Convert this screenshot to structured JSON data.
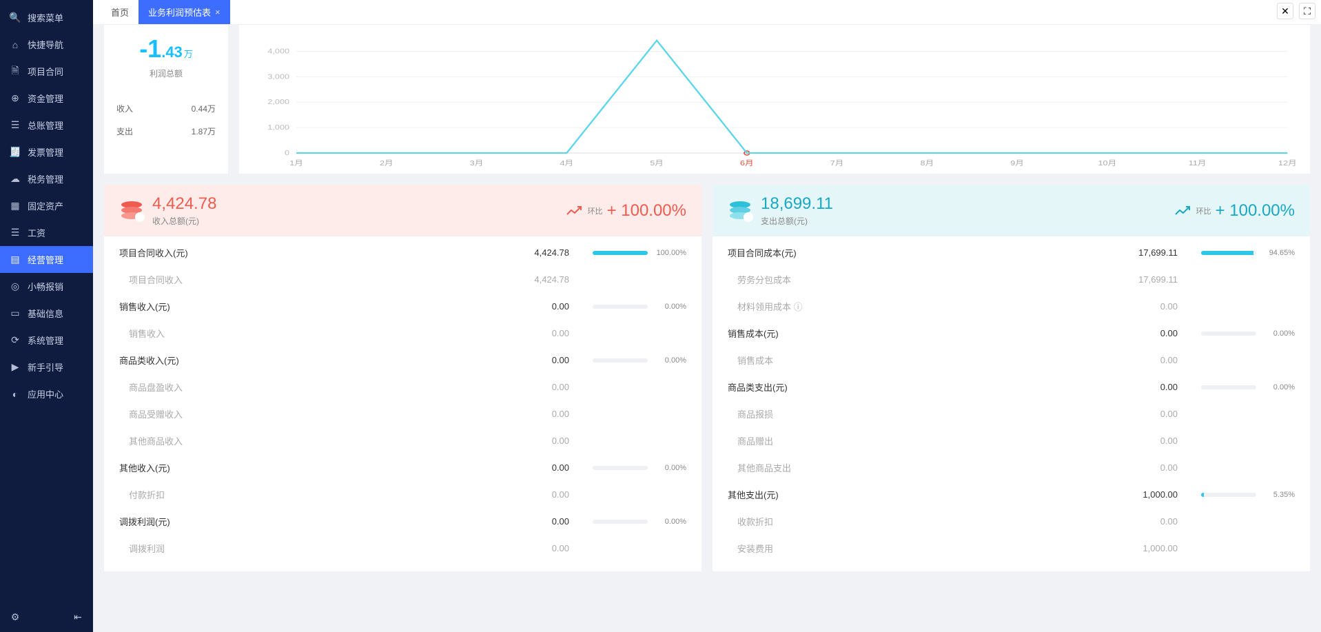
{
  "sidebar": {
    "items": [
      {
        "icon": "🔍",
        "label": "搜索菜单",
        "name": "sidebar-search"
      },
      {
        "icon": "⌂",
        "label": "快捷导航",
        "name": "sidebar-quicknav"
      },
      {
        "icon": "🗎",
        "label": "项目合同",
        "name": "sidebar-contract"
      },
      {
        "icon": "⊕",
        "label": "资金管理",
        "name": "sidebar-funds"
      },
      {
        "icon": "☰",
        "label": "总账管理",
        "name": "sidebar-ledger"
      },
      {
        "icon": "🧾",
        "label": "发票管理",
        "name": "sidebar-invoice"
      },
      {
        "icon": "☁",
        "label": "税务管理",
        "name": "sidebar-tax"
      },
      {
        "icon": "▦",
        "label": "固定资产",
        "name": "sidebar-assets"
      },
      {
        "icon": "☰",
        "label": "工资",
        "name": "sidebar-salary"
      },
      {
        "icon": "▤",
        "label": "经营管理",
        "name": "sidebar-operations",
        "active": true
      },
      {
        "icon": "◎",
        "label": "小畅报销",
        "name": "sidebar-reimburse"
      },
      {
        "icon": "▭",
        "label": "基础信息",
        "name": "sidebar-baseinfo"
      },
      {
        "icon": "⟳",
        "label": "系统管理",
        "name": "sidebar-system"
      },
      {
        "icon": "▶",
        "label": "新手引导",
        "name": "sidebar-guide"
      },
      {
        "icon": "◐",
        "label": "应用中心",
        "name": "sidebar-appcenter"
      }
    ]
  },
  "tabs": [
    {
      "label": "首页",
      "active": false,
      "closable": false
    },
    {
      "label": "业务利润预估表",
      "active": true,
      "closable": true
    }
  ],
  "profit": {
    "integer": "-1",
    "decimal": ".43",
    "unit": "万",
    "label": "利润总额",
    "rows": [
      {
        "name": "收入",
        "value": "0.44万"
      },
      {
        "name": "支出",
        "value": "1.87万"
      }
    ]
  },
  "chart": {
    "type": "line",
    "ylim": [
      0,
      4500
    ],
    "yticks": [
      0,
      1000,
      2000,
      3000,
      4000
    ],
    "xlabels": [
      "1月",
      "2月",
      "3月",
      "4月",
      "5月",
      "6月",
      "7月",
      "8月",
      "9月",
      "10月",
      "11月",
      "12月"
    ],
    "highlight_index": 5,
    "values": [
      0,
      0,
      0,
      0,
      4424.78,
      0,
      0,
      0,
      0,
      0,
      0,
      0
    ],
    "series_color": "#5bd5e8",
    "grid_color": "#f0f0f0",
    "highlight_color": "#e74c3c"
  },
  "income": {
    "total": "4,424.78",
    "total_label": "收入总额(元)",
    "hb_label": "环比",
    "hb_value": "+ 100.00%",
    "accent": "#f05b4f",
    "lines": [
      {
        "name": "项目合同收入(元)",
        "value": "4,424.78",
        "pct": "100.00%",
        "pctv": 100
      },
      {
        "name": "项目合同收入",
        "value": "4,424.78",
        "sub": true
      },
      {
        "name": "销售收入(元)",
        "value": "0.00",
        "pct": "0.00%",
        "pctv": 0
      },
      {
        "name": "销售收入",
        "value": "0.00",
        "sub": true
      },
      {
        "name": "商品类收入(元)",
        "value": "0.00",
        "pct": "0.00%",
        "pctv": 0
      },
      {
        "name": "商品盘盈收入",
        "value": "0.00",
        "sub": true
      },
      {
        "name": "商品受赠收入",
        "value": "0.00",
        "sub": true
      },
      {
        "name": "其他商品收入",
        "value": "0.00",
        "sub": true
      },
      {
        "name": "其他收入(元)",
        "value": "0.00",
        "pct": "0.00%",
        "pctv": 0
      },
      {
        "name": "付款折扣",
        "value": "0.00",
        "sub": true
      },
      {
        "name": "调拨利润(元)",
        "value": "0.00",
        "pct": "0.00%",
        "pctv": 0
      },
      {
        "name": "调拨利润",
        "value": "0.00",
        "sub": true
      }
    ]
  },
  "expense": {
    "total": "18,699.11",
    "total_label": "支出总额(元)",
    "hb_label": "环比",
    "hb_value": "+ 100.00%",
    "accent": "#18a8c4",
    "lines": [
      {
        "name": "项目合同成本(元)",
        "value": "17,699.11",
        "pct": "94.65%",
        "pctv": 94.65
      },
      {
        "name": "劳务分包成本",
        "value": "17,699.11",
        "sub": true
      },
      {
        "name": "材料领用成本 ⓘ",
        "value": "0.00",
        "sub": true
      },
      {
        "name": "销售成本(元)",
        "value": "0.00",
        "pct": "0.00%",
        "pctv": 0
      },
      {
        "name": "销售成本",
        "value": "0.00",
        "sub": true
      },
      {
        "name": "商品类支出(元)",
        "value": "0.00",
        "pct": "0.00%",
        "pctv": 0
      },
      {
        "name": "商品报损",
        "value": "0.00",
        "sub": true
      },
      {
        "name": "商品赠出",
        "value": "0.00",
        "sub": true
      },
      {
        "name": "其他商品支出",
        "value": "0.00",
        "sub": true
      },
      {
        "name": "其他支出(元)",
        "value": "1,000.00",
        "pct": "5.35%",
        "pctv": 5.35
      },
      {
        "name": "收款折扣",
        "value": "0.00",
        "sub": true
      },
      {
        "name": "安装费用",
        "value": "1,000.00",
        "sub": true
      }
    ]
  }
}
